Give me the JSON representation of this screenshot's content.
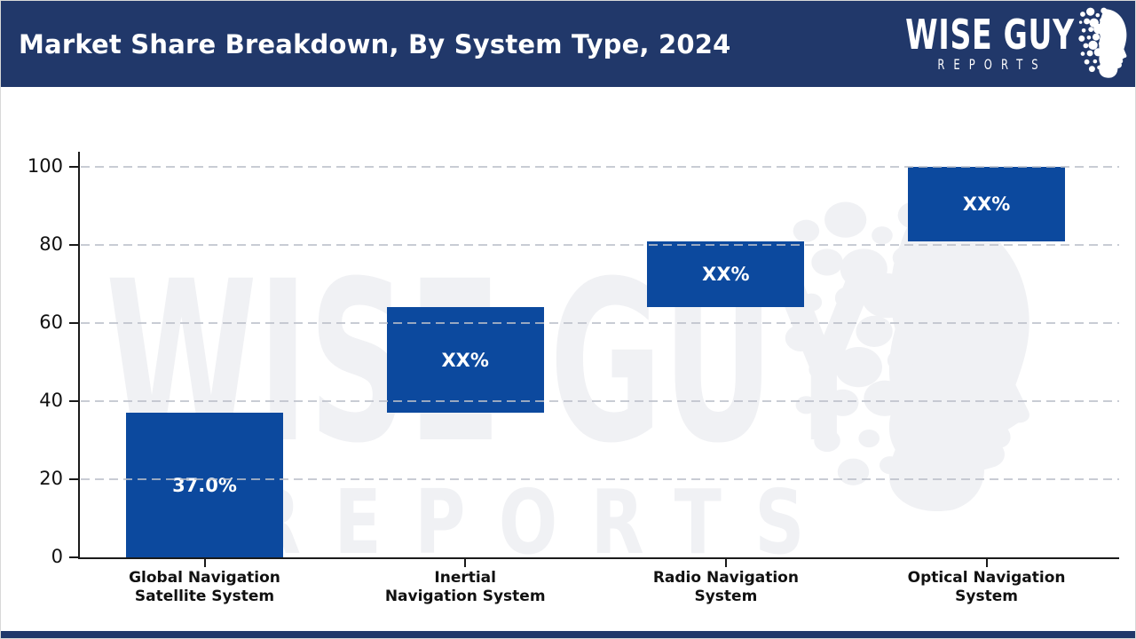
{
  "header": {
    "title": "Market Share Breakdown, By System Type, 2024",
    "bg_color": "#21386a",
    "text_color": "#ffffff",
    "logo": {
      "primary": "WISE GUY",
      "secondary": "REPORTS",
      "head_icon": "dotted-head-profile-icon"
    }
  },
  "watermark": {
    "primary": "WISE GUY",
    "secondary": "REPORTS",
    "head_icon": "dotted-head-profile-icon",
    "color": "#f0f1f4"
  },
  "chart_data": {
    "type": "bar",
    "subtype": "floating-waterfall",
    "title": "Market Share Breakdown, By System Type, 2024",
    "categories": [
      "Global Navigation Satellite System",
      "Inertial Navigation System",
      "Radio Navigation System",
      "Optical Navigation System"
    ],
    "category_lines": [
      [
        "Global Navigation",
        "Satellite System"
      ],
      [
        "Inertial",
        "Navigation System"
      ],
      [
        "Radio Navigation",
        "System"
      ],
      [
        "Optical Navigation",
        "System"
      ]
    ],
    "segments": [
      {
        "category": "Global Navigation Satellite System",
        "start": 0,
        "end": 37,
        "value": 37.0,
        "label": "37.0%"
      },
      {
        "category": "Inertial Navigation System",
        "start": 37,
        "end": 64,
        "value": 27,
        "label": "XX%"
      },
      {
        "category": "Radio Navigation System",
        "start": 64,
        "end": 81,
        "value": 17,
        "label": "XX%"
      },
      {
        "category": "Optical Navigation System",
        "start": 81,
        "end": 100,
        "value": 19,
        "label": "XX%"
      }
    ],
    "xlabel": "",
    "ylabel": "",
    "yticks": [
      0,
      20,
      40,
      60,
      80,
      100
    ],
    "ylim": [
      0,
      104
    ],
    "grid": {
      "axis": "y",
      "style": "dashed",
      "color": "#d3d3d3",
      "drawn_over_bars": true
    },
    "legend": null,
    "bar_color": "#0c499e",
    "bar_label_color": "#ffffff",
    "axis_color": "#1a1a1a"
  },
  "footer": {
    "bg_color": "#21386a"
  }
}
